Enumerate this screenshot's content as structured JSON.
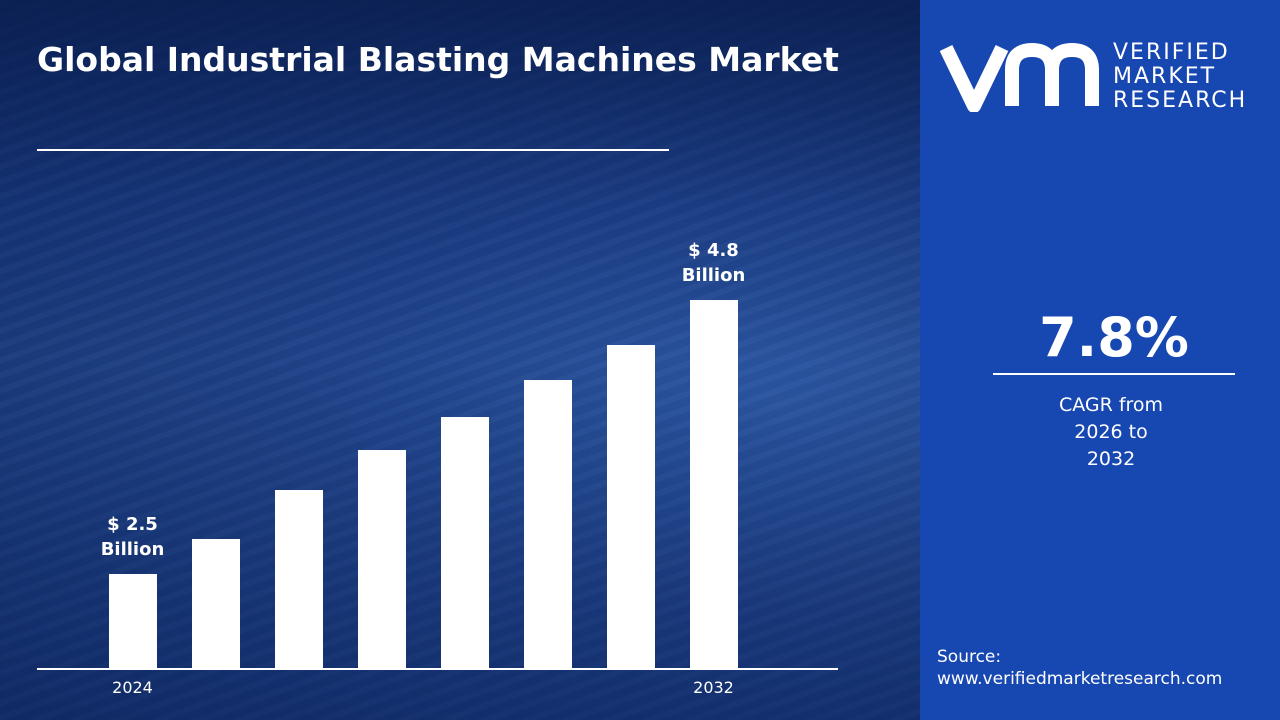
{
  "chart_data": {
    "type": "bar",
    "title": "Global Industrial Blasting Machines Market",
    "categories": [
      "2024",
      null,
      null,
      null,
      null,
      null,
      null,
      "2032"
    ],
    "values": [
      2.5,
      2.79,
      3.2,
      3.54,
      3.82,
      4.13,
      4.42,
      4.8
    ],
    "value_labels": [
      "$ 2.5 Billion",
      null,
      null,
      null,
      null,
      null,
      null,
      "$ 4.8 Billion"
    ],
    "color": "#ffffff",
    "ylim": [
      1.7,
      4.8
    ]
  },
  "brand": {
    "line1": "VERIFIED",
    "line2": "MARKET",
    "line3": "RESEARCH"
  },
  "highlight": {
    "value": "7.8%",
    "caption": "CAGR from 2026 to 2032"
  },
  "source": {
    "label": "Source:",
    "url": "www.verifiedmarketresearch.com"
  }
}
